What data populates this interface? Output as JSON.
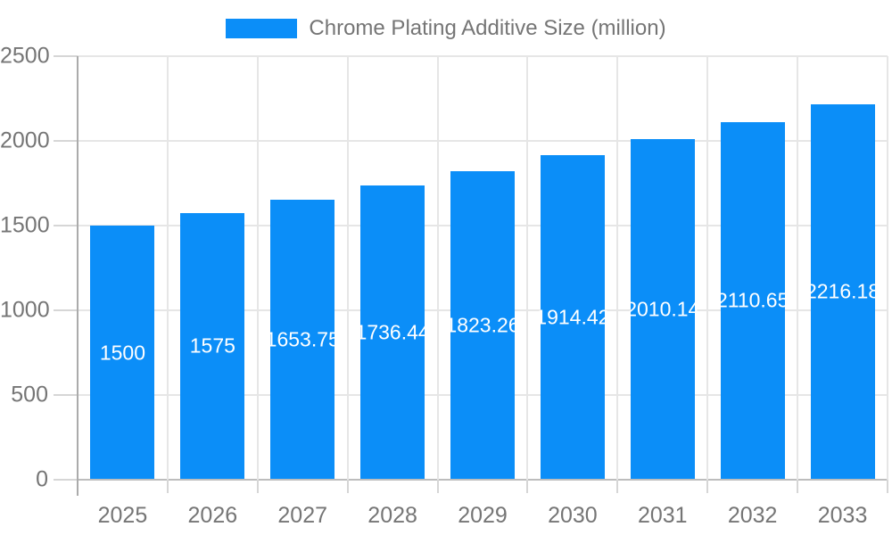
{
  "legend": {
    "title": "Chrome Plating Additive Size (million)",
    "swatch_color": "#0b8ef8"
  },
  "colors": {
    "bar": "#0b8ef8",
    "grid": "#e6e6e6",
    "axis": "#ababab",
    "text": "#757575",
    "bar_label": "#ffffff"
  },
  "chart_data": {
    "type": "bar",
    "title": "Chrome Plating Additive Size (million)",
    "categories": [
      "2025",
      "2026",
      "2027",
      "2028",
      "2029",
      "2030",
      "2031",
      "2032",
      "2033"
    ],
    "values": [
      1500,
      1575,
      1653.75,
      1736.44,
      1823.26,
      1914.42,
      2010.14,
      2110.65,
      2216.18
    ],
    "value_labels": [
      "1500",
      "1575",
      "1653.75",
      "1736.44",
      "1823.26",
      "1914.42",
      "2010.14",
      "2110.65",
      "2216.18"
    ],
    "xlabel": "",
    "ylabel": "",
    "ylim": [
      0,
      2500
    ],
    "y_ticks": [
      0,
      500,
      1000,
      1500,
      2000,
      2500
    ],
    "grid": true,
    "legend_position": "top-center",
    "bar_labels_inside": true
  }
}
